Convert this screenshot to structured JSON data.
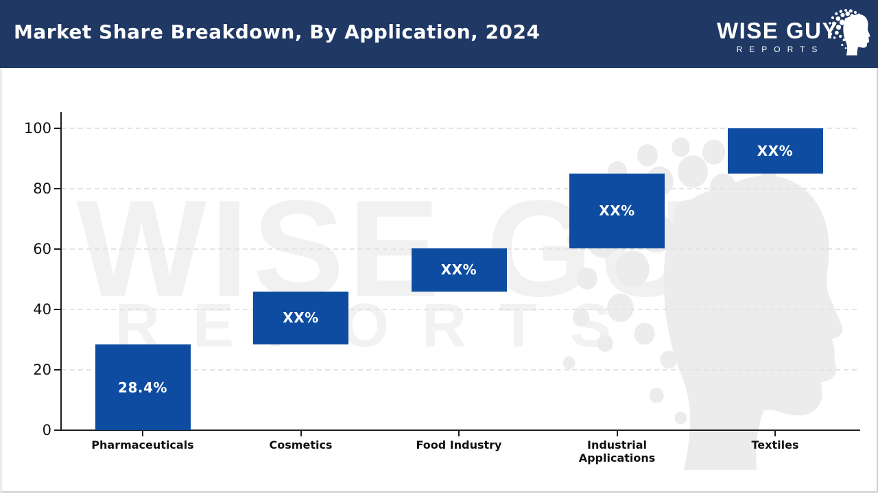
{
  "header": {
    "title": "Market Share Breakdown, By Application, 2024",
    "bg_color": "#1f3864",
    "logo": {
      "line1": "WISE GUY",
      "line2": "REPORTS"
    }
  },
  "watermark": {
    "line1": "WISE GUY",
    "line2": "REPORTS"
  },
  "chart_data": {
    "type": "bar",
    "subtype": "waterfall",
    "title": "Market Share Breakdown, By Application, 2024",
    "xlabel": "",
    "ylabel": "",
    "ylim": [
      0,
      105
    ],
    "yticks": [
      0,
      20,
      40,
      60,
      80,
      100
    ],
    "grid": "horizontal-dashed",
    "legend": "none",
    "bar_color": "#0d4ca0",
    "label_color": "#ffffff",
    "categories": [
      "Pharmaceuticals",
      "Cosmetics",
      "Food Industry",
      "Industrial Applications",
      "Textiles"
    ],
    "segments": [
      {
        "category": "Pharmaceuticals",
        "start": 0,
        "end": 28.4,
        "label": "28.4%"
      },
      {
        "category": "Cosmetics",
        "start": 28.4,
        "end": 46.0,
        "label": "XX%"
      },
      {
        "category": "Food Industry",
        "start": 46.0,
        "end": 60.3,
        "label": "XX%"
      },
      {
        "category": "Industrial Applications",
        "start": 60.3,
        "end": 85.0,
        "label": "XX%"
      },
      {
        "category": "Textiles",
        "start": 85.0,
        "end": 100.0,
        "label": "XX%"
      }
    ]
  }
}
